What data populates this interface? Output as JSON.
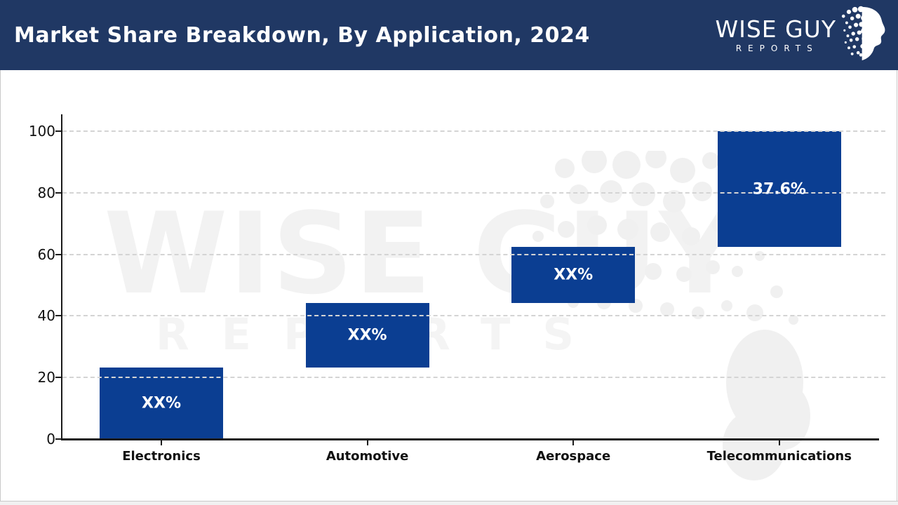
{
  "header": {
    "title": "Market Share Breakdown, By Application, 2024",
    "logo": {
      "line1": "WISE GUY",
      "line2": "REPORTS"
    }
  },
  "watermark": {
    "line1": "WISE GUY",
    "line2": "REPORTS"
  },
  "colors": {
    "header_bg": "#203864",
    "bar": "#0b3e92",
    "bar_label": "#ffffff",
    "grid": "#d4d4d4",
    "axis": "#1a1a1a",
    "watermark": "#f2f2f2"
  },
  "chart_data": {
    "type": "bar",
    "subtype": "waterfall-stacked",
    "title": "Market Share Breakdown, By Application, 2024",
    "xlabel": "",
    "ylabel": "",
    "categories": [
      "Electronics",
      "Automotive",
      "Aerospace",
      "Telecommunications"
    ],
    "segments": [
      {
        "category": "Electronics",
        "start": 0,
        "end": 23.2,
        "value_label": "XX%"
      },
      {
        "category": "Automotive",
        "start": 23.2,
        "end": 44.1,
        "value_label": "XX%"
      },
      {
        "category": "Aerospace",
        "start": 44.1,
        "end": 62.4,
        "value_label": "XX%"
      },
      {
        "category": "Telecommunications",
        "start": 62.4,
        "end": 100,
        "value_label": "37.6%"
      }
    ],
    "revealed_value": {
      "category": "Telecommunications",
      "label": "37.6%"
    },
    "yticks": [
      0,
      20,
      40,
      60,
      80,
      100
    ],
    "ylim": [
      0,
      105
    ],
    "grid": "horizontal-dashed",
    "legend": false
  }
}
